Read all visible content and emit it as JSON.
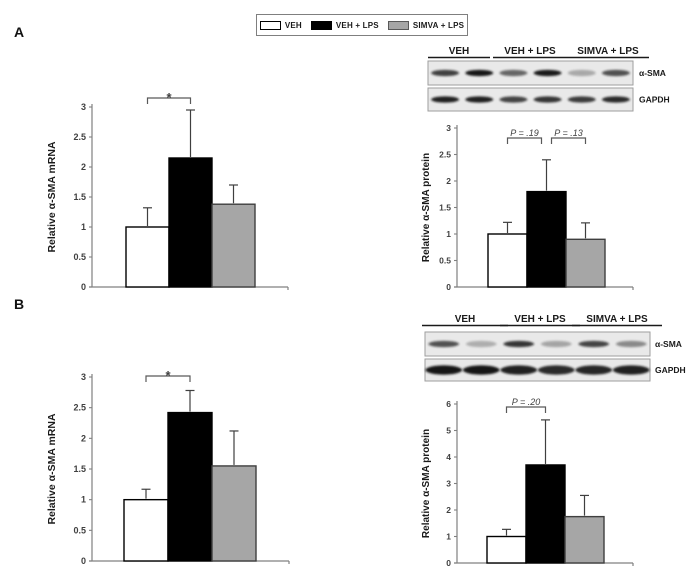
{
  "figure": {
    "panels": [
      {
        "id": "A",
        "label": "A"
      },
      {
        "id": "B",
        "label": "B"
      }
    ]
  },
  "legend": {
    "position": "top-center",
    "items": [
      {
        "label": "VEH",
        "fill": "#ffffff",
        "border": "#000000"
      },
      {
        "label": "VEH + LPS",
        "fill": "#000000",
        "border": "#000000"
      },
      {
        "label": "SIMVA + LPS",
        "fill": "#a6a6a6",
        "border": "#595959"
      }
    ]
  },
  "colors": {
    "bar_fills": [
      "#ffffff",
      "#000000",
      "#a6a6a6"
    ],
    "bar_strokes": [
      "#000000",
      "#000000",
      "#3f3f3f"
    ],
    "axis": "#808080",
    "tick_text": "#3f3f3f",
    "error_bar": "#3f3f3f",
    "bracket": "#595959",
    "band": "#141414",
    "strip_bg": "#e9e9e9",
    "strip_border": "#9e9e9e"
  },
  "chart_data": [
    {
      "id": "a-mrna",
      "panel": "A",
      "type": "bar",
      "categories": [
        "VEH",
        "VEH + LPS",
        "SIMVA + LPS"
      ],
      "values": [
        1.0,
        2.15,
        1.38
      ],
      "errors": [
        0.32,
        0.8,
        0.32
      ],
      "ylabel": "Relative α-SMA mRNA",
      "ylim": [
        0,
        3
      ],
      "yticks": [
        "0",
        "0.5",
        "1",
        "1.5",
        "2",
        "2.5",
        "3"
      ],
      "grid": false,
      "legend_position": "top",
      "annotations": [
        {
          "type": "bracket",
          "from": 0,
          "to": 1,
          "label": "*"
        }
      ]
    },
    {
      "id": "a-protein",
      "panel": "A",
      "type": "bar",
      "categories": [
        "VEH",
        "VEH + LPS",
        "SIMVA + LPS"
      ],
      "values": [
        1.0,
        1.8,
        0.9
      ],
      "errors": [
        0.22,
        0.6,
        0.31
      ],
      "ylabel": "Relative α-SMA protein",
      "ylim": [
        0,
        3
      ],
      "yticks": [
        "0",
        "0.5",
        "1",
        "1.5",
        "2",
        "2.5",
        "3"
      ],
      "grid": false,
      "annotations": [
        {
          "type": "bracket",
          "from": 0,
          "to": 1,
          "label": "P = .19"
        },
        {
          "type": "bracket",
          "from": 1,
          "to": 2,
          "label": "P = .13"
        }
      ]
    },
    {
      "id": "b-mrna",
      "panel": "B",
      "type": "bar",
      "categories": [
        "VEH",
        "VEH + LPS",
        "SIMVA + LPS"
      ],
      "values": [
        1.0,
        2.42,
        1.55
      ],
      "errors": [
        0.17,
        0.36,
        0.57
      ],
      "ylabel": "Relative α-SMA mRNA",
      "ylim": [
        0,
        3
      ],
      "yticks": [
        "0",
        "0.5",
        "1",
        "1.5",
        "2",
        "2.5",
        "3"
      ],
      "grid": false,
      "annotations": [
        {
          "type": "bracket",
          "from": 0,
          "to": 1,
          "label": "*"
        }
      ]
    },
    {
      "id": "b-protein",
      "panel": "B",
      "type": "bar",
      "categories": [
        "VEH",
        "VEH + LPS",
        "SIMVA + LPS"
      ],
      "values": [
        1.0,
        3.7,
        1.75
      ],
      "errors": [
        0.27,
        1.7,
        0.8
      ],
      "ylabel": "Relative α-SMA protein",
      "ylim": [
        0,
        6
      ],
      "yticks": [
        "0",
        "1",
        "2",
        "3",
        "4",
        "5",
        "6"
      ],
      "grid": false,
      "annotations": [
        {
          "type": "bracket",
          "from": 0,
          "to": 1,
          "label": "P = .20"
        }
      ]
    }
  ],
  "blots": [
    {
      "id": "blot-a",
      "panel": "A",
      "col_labels": [
        "VEH",
        "VEH + LPS",
        "SIMVA + LPS"
      ],
      "rows": [
        {
          "label": "α-SMA",
          "thick": false,
          "band_intensities": [
            0.8,
            1.0,
            0.62,
            0.98,
            0.3,
            0.72
          ]
        },
        {
          "label": "GAPDH",
          "thick": false,
          "band_intensities": [
            0.95,
            0.95,
            0.78,
            0.85,
            0.82,
            0.9
          ]
        }
      ]
    },
    {
      "id": "blot-b",
      "panel": "B",
      "col_labels": [
        "VEH",
        "VEH + LPS",
        "SIMVA + LPS"
      ],
      "rows": [
        {
          "label": "α-SMA",
          "thick": false,
          "band_intensities": [
            0.72,
            0.28,
            0.85,
            0.32,
            0.78,
            0.45
          ]
        },
        {
          "label": "GAPDH",
          "thick": true,
          "band_intensities": [
            1.0,
            1.0,
            0.95,
            0.9,
            0.92,
            0.95
          ]
        }
      ]
    }
  ]
}
